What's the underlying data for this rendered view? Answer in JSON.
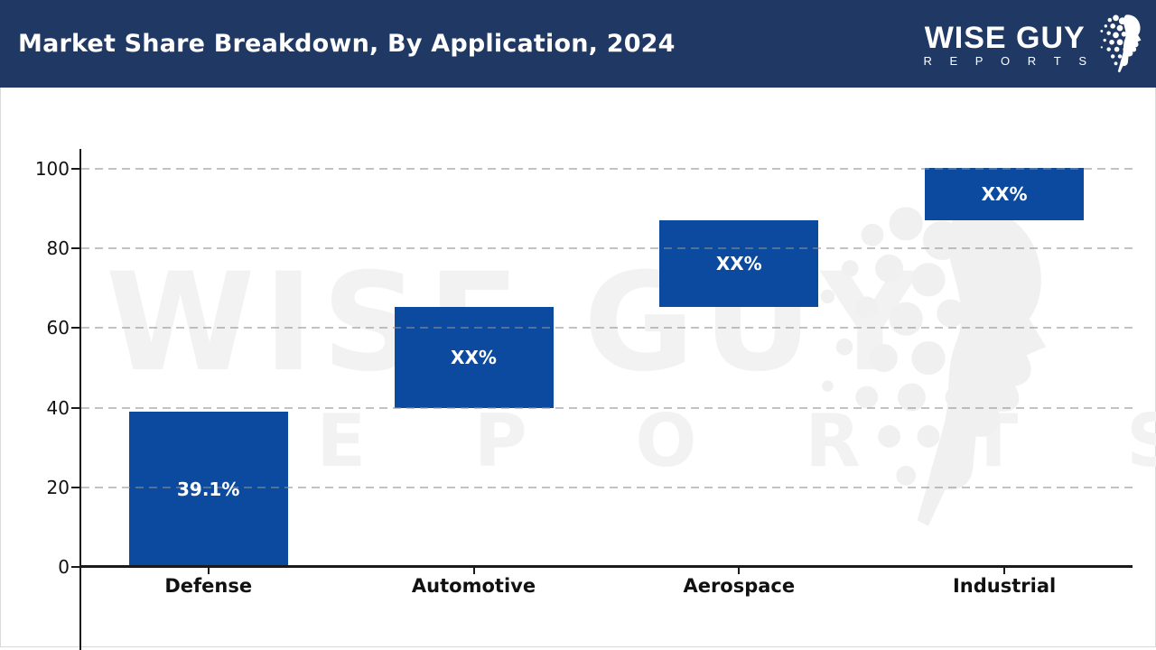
{
  "header": {
    "title": "Market Share Breakdown, By Application, 2024",
    "logo": {
      "line1": "WISE GUY",
      "line2": "REPORTS"
    }
  },
  "watermark": {
    "line1": "WISE GUY",
    "line2": "R E P O R T S"
  },
  "colors": {
    "header_bg": "#203864",
    "bar": "#0b4a9e",
    "bar_label": "#ffffff",
    "watermark": "#f2f2f2",
    "axis": "#1a1a1a"
  },
  "chart_data": {
    "type": "bar",
    "subtype": "waterfall",
    "title": "Market Share Breakdown, By Application, 2024",
    "xlabel": "",
    "ylabel": "",
    "categories": [
      "Defense",
      "Automotive",
      "Aerospace",
      "Industrial"
    ],
    "bars": [
      {
        "category": "Defense",
        "start": 0,
        "end": 39.1,
        "label": "39.1%"
      },
      {
        "category": "Automotive",
        "start": 39.8,
        "end": 65.3,
        "label": "XX%"
      },
      {
        "category": "Aerospace",
        "start": 65.3,
        "end": 87.1,
        "label": "XX%"
      },
      {
        "category": "Industrial",
        "start": 87.1,
        "end": 100.3,
        "label": "XX%"
      }
    ],
    "yticks": [
      0,
      20,
      40,
      60,
      80,
      100
    ],
    "ylim": [
      0,
      105
    ],
    "grid": {
      "horizontal": true,
      "style": "dashed"
    },
    "legend": "none",
    "bar_color": "#0b4a9e",
    "bar_label_color": "#ffffff"
  }
}
